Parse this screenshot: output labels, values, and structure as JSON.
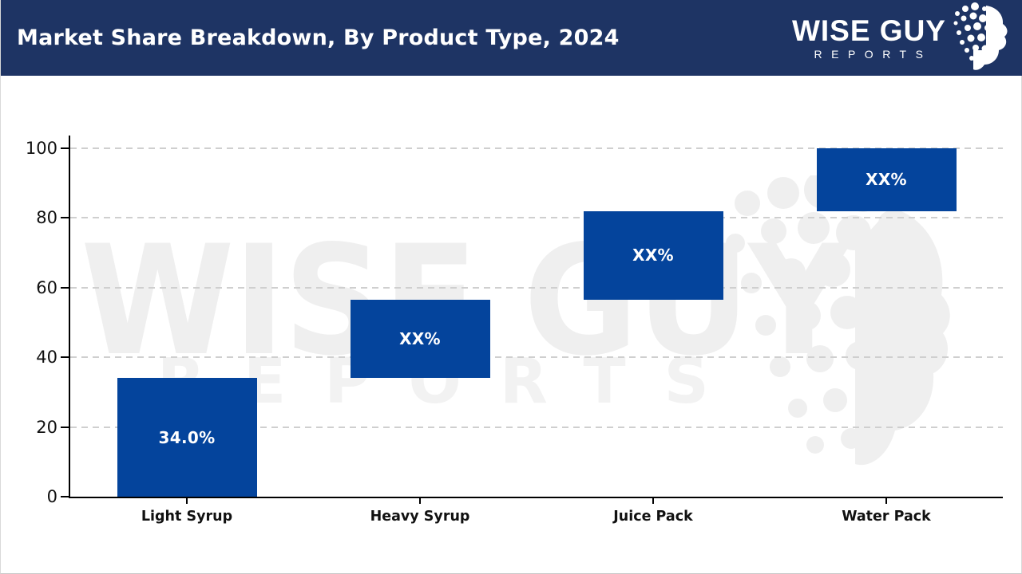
{
  "header": {
    "title": "Market Share Breakdown, By Product Type, 2024",
    "logo": {
      "line1": "WISE GUY",
      "line2": "REPORTS"
    }
  },
  "watermark": {
    "line1": "WISE GUY",
    "line2": "REPORTS"
  },
  "colors": {
    "header_bg": "#1e3464",
    "bar": "#04449c",
    "gridline": "#cfcfcf",
    "watermark": "#efefef",
    "bar_label": "#ffffff"
  },
  "chart_data": {
    "type": "bar",
    "subtype": "waterfall",
    "title": "Market Share Breakdown, By Product Type, 2024",
    "categories": [
      "Light Syrup",
      "Heavy Syrup",
      "Juice Pack",
      "Water Pack"
    ],
    "segments": [
      {
        "category": "Light Syrup",
        "start": 0,
        "end": 34,
        "label": "34.0%"
      },
      {
        "category": "Heavy Syrup",
        "start": 34,
        "end": 56.5,
        "label": "XX%"
      },
      {
        "category": "Juice Pack",
        "start": 56.5,
        "end": 82,
        "label": "XX%"
      },
      {
        "category": "Water Pack",
        "start": 82,
        "end": 100,
        "label": "XX%"
      }
    ],
    "xlabel": "",
    "ylabel": "",
    "yticks": [
      0,
      20,
      40,
      60,
      80,
      100
    ],
    "ylim": [
      0,
      103.7
    ],
    "grid": "dashed-horizontal",
    "legend": "none"
  }
}
